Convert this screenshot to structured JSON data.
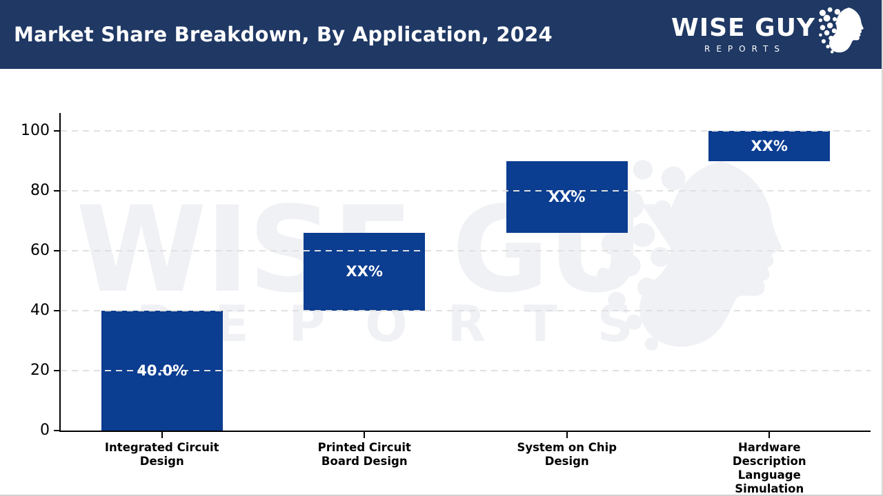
{
  "header": {
    "title": "Market Share Breakdown, By Application, 2024",
    "logo": {
      "wordmark": "WISE GUY",
      "subtext": "REPORTS"
    }
  },
  "watermark": {
    "wordmark": "WISE GUY",
    "subtext": "REPORTS"
  },
  "colors": {
    "header_bg": "#1f3864",
    "bar_fill": "#0b3d91",
    "bar_label_text": "#ffffff",
    "gridline": "#e0e0e0",
    "axis": "#000000",
    "watermark": "#f0f1f4"
  },
  "chart_data": {
    "type": "bar",
    "subtype": "waterfall",
    "title": "Market Share Breakdown, By Application, 2024",
    "categories": [
      "Integrated Circuit Design",
      "Printed Circuit Board Design",
      "System on Chip Design",
      "Hardware Description Language Simulation"
    ],
    "tick_label_lines": [
      [
        "Integrated Circuit",
        "Design"
      ],
      [
        "Printed Circuit",
        "Board Design"
      ],
      [
        "System on Chip",
        "Design"
      ],
      [
        "Hardware",
        "Description",
        "Language",
        "Simulation"
      ]
    ],
    "values": [
      40,
      26,
      24,
      10
    ],
    "segment_start": [
      0,
      40,
      66,
      90
    ],
    "segment_end": [
      40,
      66,
      90,
      100
    ],
    "bar_labels": [
      "40.0%",
      "XX%",
      "XX%",
      "XX%"
    ],
    "xlabel": "",
    "ylabel": "",
    "ylim": [
      0,
      100
    ],
    "yticks": [
      0,
      20,
      40,
      60,
      80,
      100
    ],
    "grid": "horizontal-dashed",
    "legend": "none"
  }
}
